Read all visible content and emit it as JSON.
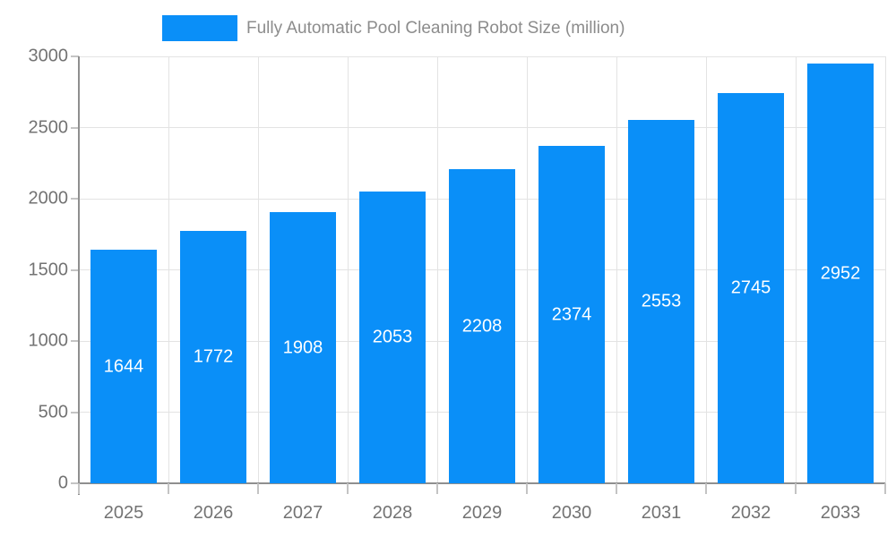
{
  "chart_data": {
    "type": "bar",
    "title": "",
    "legend": "Fully Automatic Pool Cleaning Robot Size (million)",
    "legend_position": "top",
    "categories": [
      "2025",
      "2026",
      "2027",
      "2028",
      "2029",
      "2030",
      "2031",
      "2032",
      "2033"
    ],
    "values": [
      1644,
      1772,
      1908,
      2053,
      2208,
      2374,
      2553,
      2745,
      2952
    ],
    "xlabel": "",
    "ylabel": "",
    "ylim": [
      0,
      3000
    ],
    "yticks": [
      0,
      500,
      1000,
      1500,
      2000,
      2500,
      3000
    ],
    "grid": true,
    "colors": {
      "bar": "#0a8ff8",
      "bar_value_label": "#ffffff",
      "grid_line": "#e3e3e3",
      "axis_line": "#8f8f8f",
      "tick_mark": "#c4c4c4",
      "axis_tick_label": "#737373",
      "legend_text": "#8c8c8c",
      "background": "#ffffff"
    }
  }
}
